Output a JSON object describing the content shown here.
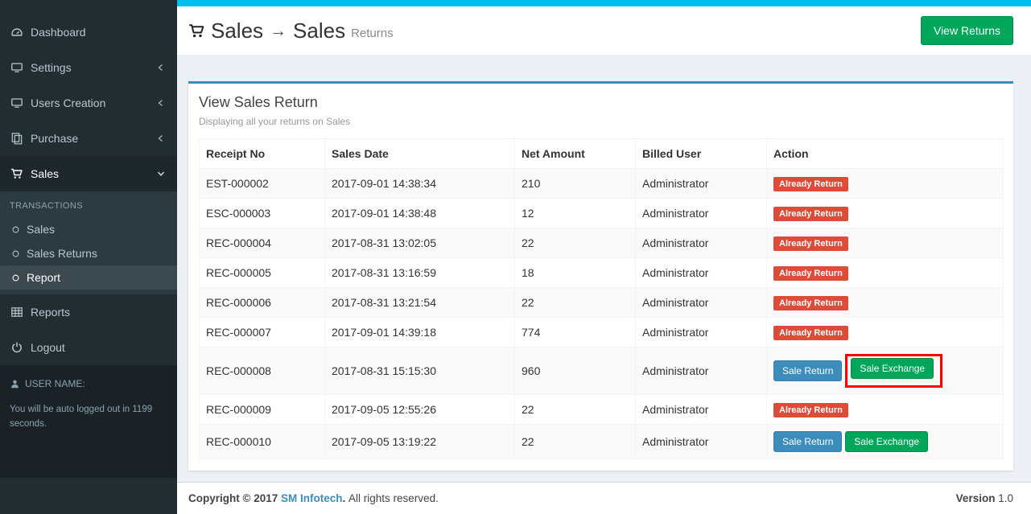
{
  "colors": {
    "topbar": "#00c0ef",
    "sidebar_bg": "#222d32",
    "sidebar_submenu_bg": "#2c3b41",
    "sidebar_active_bg": "#1e282c",
    "sidebar_user_bg": "#1a2226",
    "content_bg": "#ecf0f5",
    "primary": "#3c8dbc",
    "success": "#00a65a",
    "danger": "#dd4b39",
    "highlight": "#ff0000"
  },
  "sidebar": {
    "menu": [
      {
        "label": "Dashboard",
        "icon": "dashboard-icon"
      },
      {
        "label": "Settings",
        "icon": "settings-monitor-icon",
        "chevron": "left"
      },
      {
        "label": "Users Creation",
        "icon": "users-monitor-icon",
        "chevron": "left"
      },
      {
        "label": "Purchase",
        "icon": "purchase-copy-icon",
        "chevron": "left"
      },
      {
        "label": "Sales",
        "icon": "sales-cart-icon",
        "chevron": "down",
        "active": true
      }
    ],
    "submenu_header": "TRANSACTIONS",
    "submenu": [
      {
        "label": "Sales",
        "icon": "circle-outline-icon"
      },
      {
        "label": "Sales Returns",
        "icon": "circle-outline-icon"
      },
      {
        "label": "Report",
        "icon": "circle-outline-icon"
      }
    ],
    "menu_bottom": [
      {
        "label": "Reports",
        "icon": "reports-table-icon"
      },
      {
        "label": "Logout",
        "icon": "logout-power-icon"
      }
    ],
    "user": {
      "label": "USER NAME:",
      "notice": "You will be auto logged out in 1199 seconds."
    }
  },
  "header": {
    "title_primary": "Sales",
    "arrow": "→",
    "title_secondary": "Sales",
    "title_small": "Returns",
    "button": "View Returns"
  },
  "panel": {
    "title": "View Sales Return",
    "subtitle": "Displaying all your returns on Sales",
    "table": {
      "columns": [
        "Receipt No",
        "Sales Date",
        "Net Amount",
        "Billed User",
        "Action"
      ],
      "rows": [
        {
          "receipt_no": "EST-000002",
          "sales_date": "2017-09-01 14:38:34",
          "net_amount": "210",
          "billed_user": "Administrator",
          "actions": [
            {
              "label": "Already Return",
              "style": "danger",
              "kind": "badge",
              "name": "already-return-badge"
            }
          ]
        },
        {
          "receipt_no": "ESC-000003",
          "sales_date": "2017-09-01 14:38:48",
          "net_amount": "12",
          "billed_user": "Administrator",
          "actions": [
            {
              "label": "Already Return",
              "style": "danger",
              "kind": "badge",
              "name": "already-return-badge"
            }
          ]
        },
        {
          "receipt_no": "REC-000004",
          "sales_date": "2017-08-31 13:02:05",
          "net_amount": "22",
          "billed_user": "Administrator",
          "actions": [
            {
              "label": "Already Return",
              "style": "danger",
              "kind": "badge",
              "name": "already-return-badge"
            }
          ]
        },
        {
          "receipt_no": "REC-000005",
          "sales_date": "2017-08-31 13:16:59",
          "net_amount": "18",
          "billed_user": "Administrator",
          "actions": [
            {
              "label": "Already Return",
              "style": "danger",
              "kind": "badge",
              "name": "already-return-badge"
            }
          ]
        },
        {
          "receipt_no": "REC-000006",
          "sales_date": "2017-08-31 13:21:54",
          "net_amount": "22",
          "billed_user": "Administrator",
          "actions": [
            {
              "label": "Already Return",
              "style": "danger",
              "kind": "badge",
              "name": "already-return-badge"
            }
          ]
        },
        {
          "receipt_no": "REC-000007",
          "sales_date": "2017-09-01 14:39:18",
          "net_amount": "774",
          "billed_user": "Administrator",
          "actions": [
            {
              "label": "Already Return",
              "style": "danger",
              "kind": "badge",
              "name": "already-return-badge"
            }
          ]
        },
        {
          "receipt_no": "REC-000008",
          "sales_date": "2017-08-31 15:15:30",
          "net_amount": "960",
          "billed_user": "Administrator",
          "actions": [
            {
              "label": "Sale Return",
              "style": "primary",
              "kind": "button",
              "name": "sale-return-button"
            },
            {
              "label": "Sale Exchange",
              "style": "success",
              "kind": "button",
              "name": "sale-exchange-button",
              "highlighted": true
            }
          ]
        },
        {
          "receipt_no": "REC-000009",
          "sales_date": "2017-09-05 12:55:26",
          "net_amount": "22",
          "billed_user": "Administrator",
          "actions": [
            {
              "label": "Already Return",
              "style": "danger",
              "kind": "badge",
              "name": "already-return-badge"
            }
          ]
        },
        {
          "receipt_no": "REC-000010",
          "sales_date": "2017-09-05 13:19:22",
          "net_amount": "22",
          "billed_user": "Administrator",
          "actions": [
            {
              "label": "Sale Return",
              "style": "primary",
              "kind": "button",
              "name": "sale-return-button"
            },
            {
              "label": "Sale Exchange",
              "style": "success",
              "kind": "button",
              "name": "sale-exchange-button"
            }
          ]
        }
      ]
    }
  },
  "footer": {
    "prefix": "Copyright © 2017",
    "company": "SM Infotech",
    "period": ".",
    "suffix": "All rights reserved.",
    "version_label": "Version",
    "version_value": "1.0"
  }
}
